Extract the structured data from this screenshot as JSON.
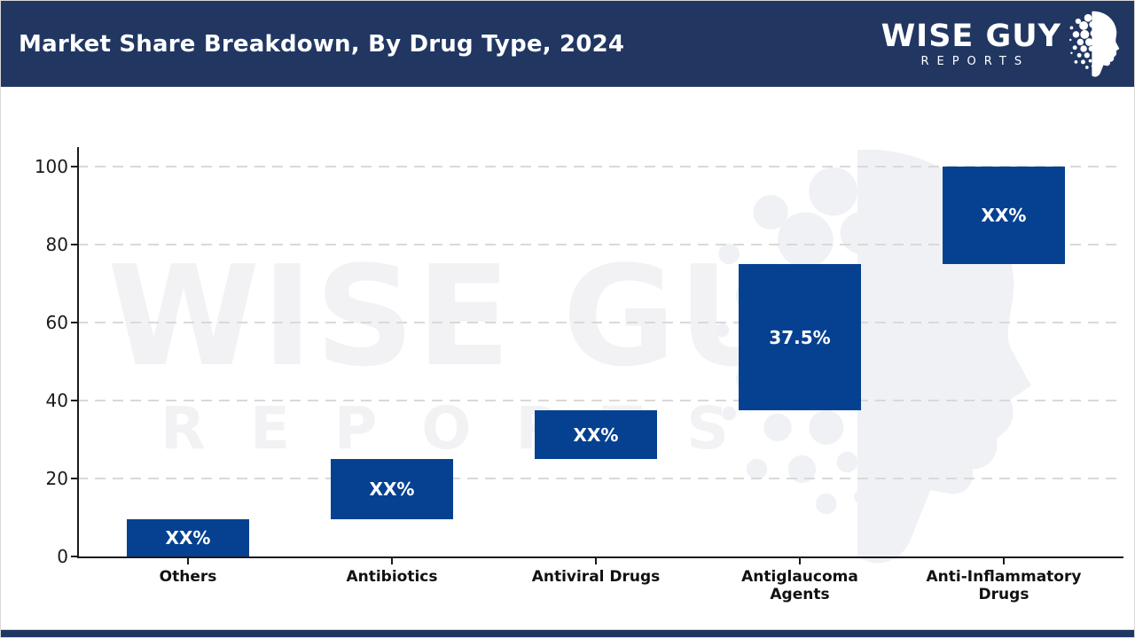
{
  "header": {
    "title": "Market Share Breakdown, By Drug Type, 2024",
    "logo": {
      "line1": "WISE GUY",
      "line2": "REPORTS"
    }
  },
  "watermark": {
    "line1": "WISE GUY",
    "line2": "REPORTS"
  },
  "colors": {
    "header": "#213762",
    "bar": "#064191",
    "grid": "#d9d9d9",
    "axis": "#1a1a1a",
    "watermark_text": "#f2f2f5"
  },
  "chart_data": {
    "type": "bar",
    "subtype": "floating-waterfall",
    "title": "Market Share Breakdown, By Drug Type, 2024",
    "xlabel": "",
    "ylabel": "",
    "categories": [
      "Others",
      "Antibiotics",
      "Antiviral Drugs",
      "Antiglaucoma\nAgents",
      "Anti-Inflammatory\nDrugs"
    ],
    "segments": [
      {
        "category": "Others",
        "start": 0,
        "end": 9.5,
        "label": "XX%"
      },
      {
        "category": "Antibiotics",
        "start": 9.5,
        "end": 25,
        "label": "XX%"
      },
      {
        "category": "Antiviral Drugs",
        "start": 25,
        "end": 37.5,
        "label": "XX%"
      },
      {
        "category": "Antiglaucoma Agents",
        "start": 37.5,
        "end": 75,
        "label": "37.5%"
      },
      {
        "category": "Anti-Inflammatory Drugs",
        "start": 75,
        "end": 100,
        "label": "XX%"
      }
    ],
    "yticks": [
      0,
      20,
      40,
      60,
      80,
      100
    ],
    "ylim": [
      0,
      105
    ],
    "grid": "dashed-horizontal",
    "legend": null
  }
}
